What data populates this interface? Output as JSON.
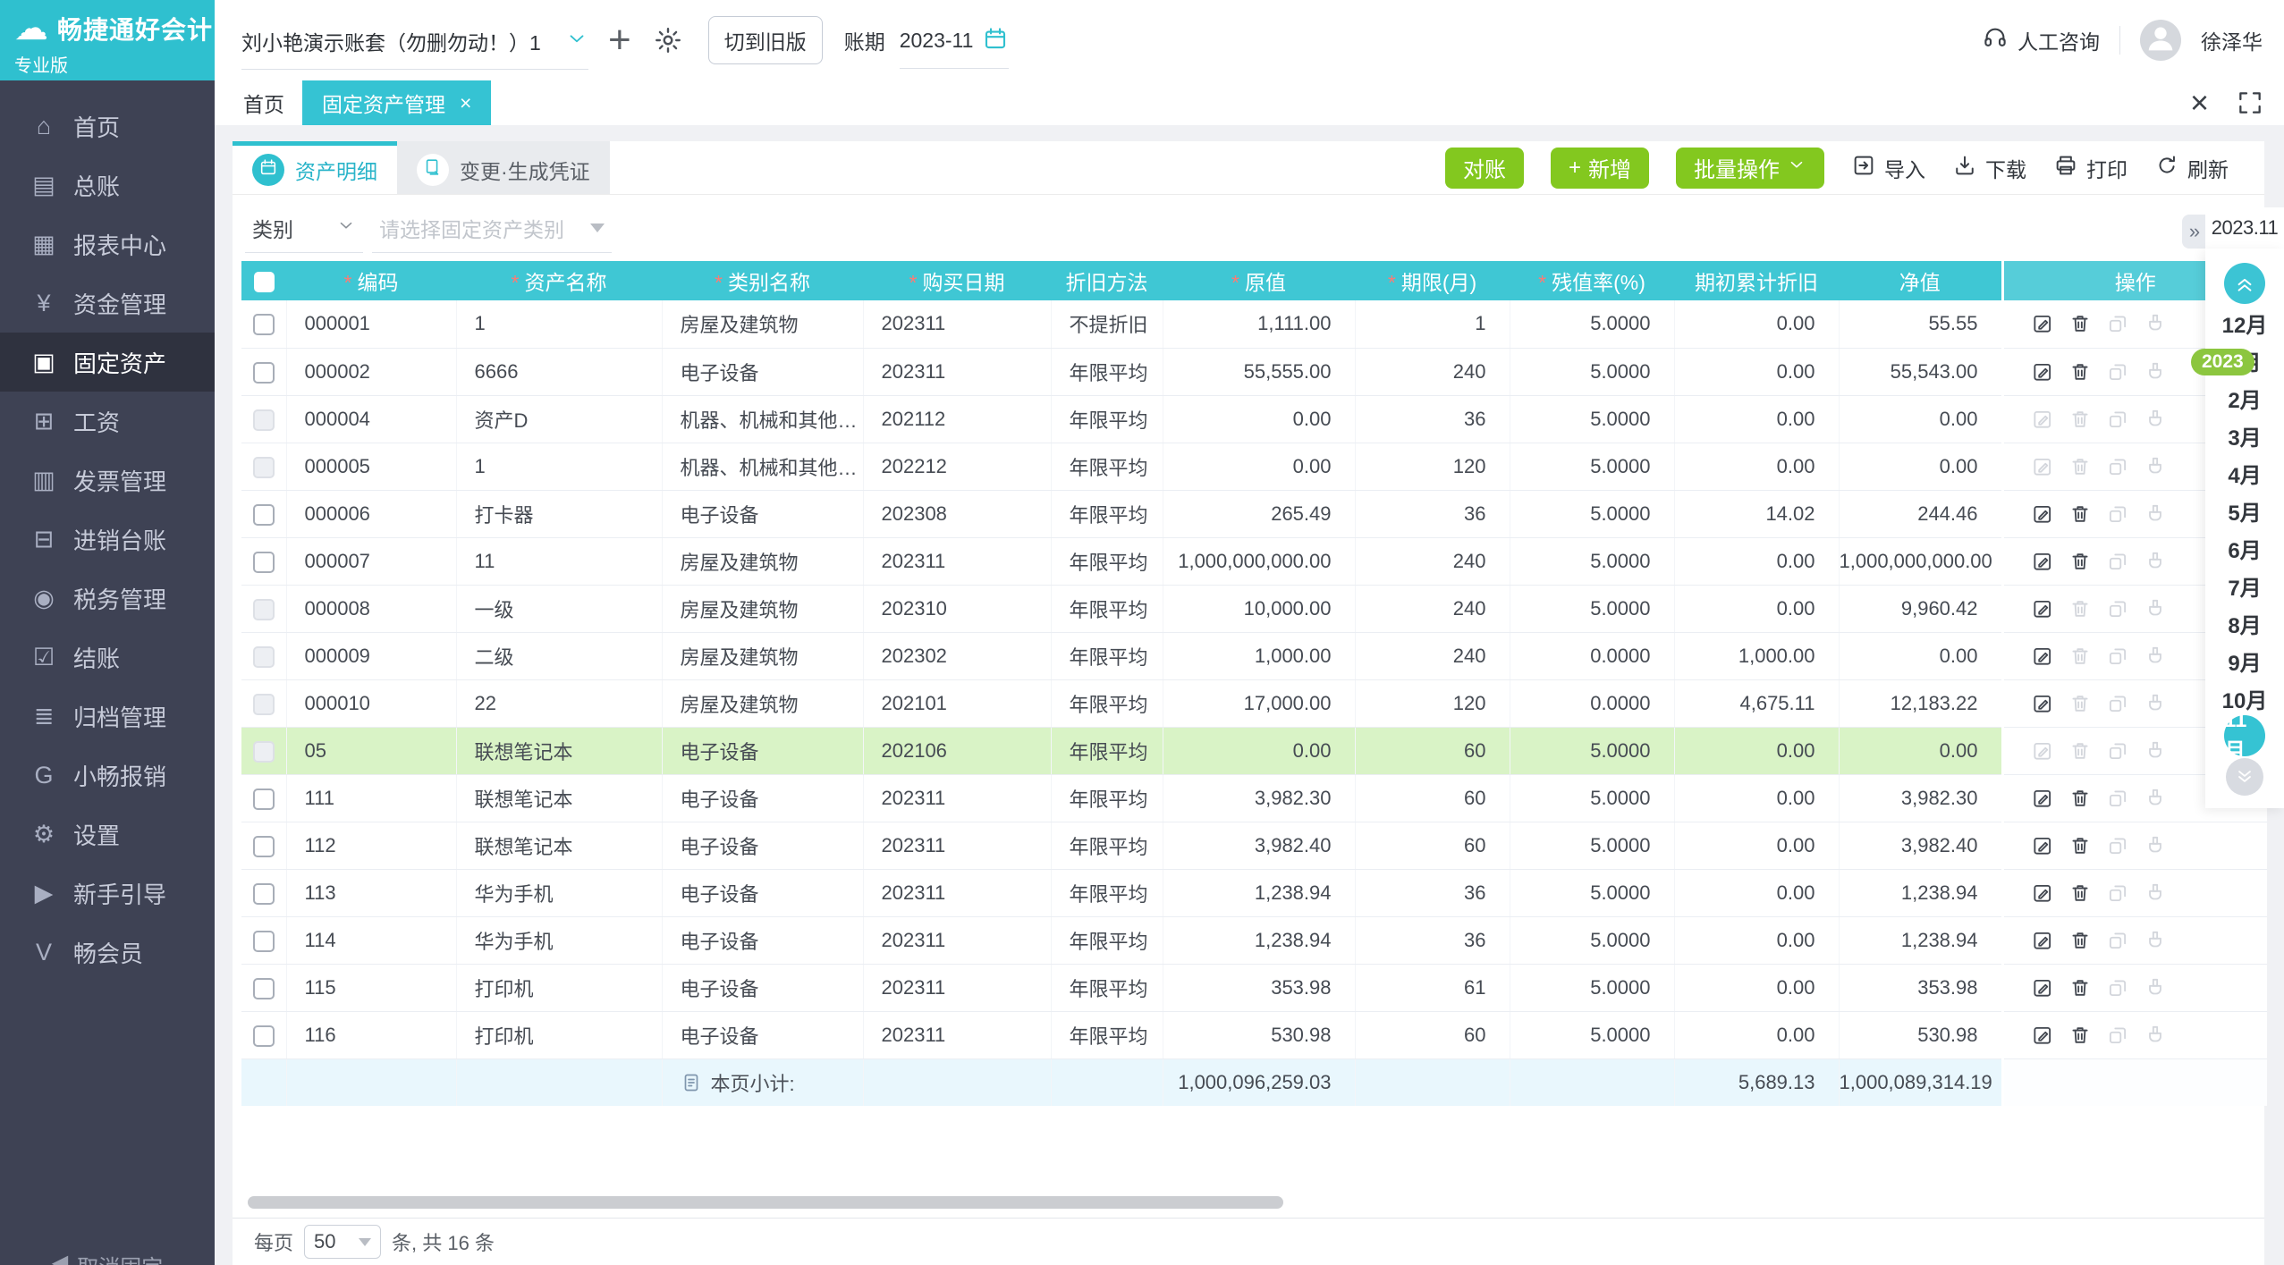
{
  "brand": {
    "title": "畅捷通好会计",
    "edition": "专业版"
  },
  "header": {
    "account": "刘小艳演示账套（勿删勿动！）1",
    "switch_old": "切到旧版",
    "period_label": "账期",
    "period": "2023-11",
    "support": "人工咨询",
    "username": "徐泽华"
  },
  "tabs": [
    {
      "label": "首页",
      "active": false
    },
    {
      "label": "固定资产管理",
      "active": true,
      "close": "×"
    }
  ],
  "subtabs": [
    {
      "label": "资产明细",
      "icon": "calendar",
      "active": true
    },
    {
      "label": "变更·生成凭证",
      "icon": "voucher",
      "active": false
    }
  ],
  "toolbar": {
    "reconcile": "对账",
    "add": "新增",
    "batch": "批量操作",
    "import": "导入",
    "download": "下载",
    "print": "打印",
    "refresh": "刷新"
  },
  "filter": {
    "label": "类别",
    "placeholder": "请选择固定资产类别"
  },
  "sidebar": {
    "items": [
      {
        "label": "首页",
        "icon": "home-icon",
        "glyph": "⌂",
        "active": false
      },
      {
        "label": "总账",
        "icon": "general-ledger-icon",
        "glyph": "▤",
        "active": false
      },
      {
        "label": "报表中心",
        "icon": "report-center-icon",
        "glyph": "▦",
        "active": false
      },
      {
        "label": "资金管理",
        "icon": "funds-icon",
        "glyph": "¥",
        "active": false
      },
      {
        "label": "固定资产",
        "icon": "fixed-assets-icon",
        "glyph": "▣",
        "active": true
      },
      {
        "label": "工资",
        "icon": "salary-icon",
        "glyph": "⊞",
        "active": false
      },
      {
        "label": "发票管理",
        "icon": "invoice-icon",
        "glyph": "▥",
        "active": false
      },
      {
        "label": "进销台账",
        "icon": "purchase-sales-icon",
        "glyph": "⊟",
        "active": false
      },
      {
        "label": "税务管理",
        "icon": "tax-icon",
        "glyph": "◉",
        "active": false
      },
      {
        "label": "结账",
        "icon": "closing-icon",
        "glyph": "☑",
        "active": false
      },
      {
        "label": "归档管理",
        "icon": "archive-icon",
        "glyph": "≣",
        "active": false
      },
      {
        "label": "小畅报销",
        "icon": "reimburse-icon",
        "glyph": "G",
        "active": false
      },
      {
        "label": "设置",
        "icon": "settings-icon",
        "glyph": "⚙",
        "active": false
      },
      {
        "label": "新手引导",
        "icon": "guide-icon",
        "glyph": "▶",
        "active": false
      },
      {
        "label": "畅会员",
        "icon": "member-icon",
        "glyph": "V",
        "active": false
      }
    ],
    "unpin": "取消固定"
  },
  "table": {
    "columns": [
      {
        "key": "code",
        "label": "编码",
        "required": true
      },
      {
        "key": "name",
        "label": "资产名称",
        "required": true
      },
      {
        "key": "category",
        "label": "类别名称",
        "required": true
      },
      {
        "key": "date",
        "label": "购买日期",
        "required": true
      },
      {
        "key": "method",
        "label": "折旧方法",
        "required": false
      },
      {
        "key": "original",
        "label": "原值",
        "required": true,
        "numeric": true
      },
      {
        "key": "months",
        "label": "期限(月)",
        "required": true,
        "numeric": true
      },
      {
        "key": "rate",
        "label": "残值率(%)",
        "required": true,
        "numeric": true
      },
      {
        "key": "init_dep",
        "label": "期初累计折旧",
        "required": false,
        "numeric": true
      },
      {
        "key": "net",
        "label": "净值",
        "required": false,
        "numeric": true
      }
    ],
    "actions_label": "操作",
    "rows": [
      {
        "code": "000001",
        "name": "1",
        "category": "房屋及建筑物",
        "date": "202311",
        "method": "不提折旧",
        "original": "1,111.00",
        "months": "1",
        "rate": "5.0000",
        "init_dep": "0.00",
        "net": "55.55",
        "checkbox": "enabled",
        "actions": "edit-delete",
        "highlight": false
      },
      {
        "code": "000002",
        "name": "6666",
        "category": "电子设备",
        "date": "202311",
        "method": "年限平均",
        "original": "55,555.00",
        "months": "240",
        "rate": "5.0000",
        "init_dep": "0.00",
        "net": "55,543.00",
        "checkbox": "enabled",
        "actions": "edit-delete",
        "highlight": false
      },
      {
        "code": "000004",
        "name": "资产D",
        "category": "机器、机械和其他生...",
        "date": "202112",
        "method": "年限平均",
        "original": "0.00",
        "months": "36",
        "rate": "5.0000",
        "init_dep": "0.00",
        "net": "0.00",
        "checkbox": "disabled",
        "actions": "none",
        "highlight": false
      },
      {
        "code": "000005",
        "name": "1",
        "category": "机器、机械和其他生...",
        "date": "202212",
        "method": "年限平均",
        "original": "0.00",
        "months": "120",
        "rate": "5.0000",
        "init_dep": "0.00",
        "net": "0.00",
        "checkbox": "disabled",
        "actions": "none",
        "highlight": false
      },
      {
        "code": "000006",
        "name": "打卡器",
        "category": "电子设备",
        "date": "202308",
        "method": "年限平均",
        "original": "265.49",
        "months": "36",
        "rate": "5.0000",
        "init_dep": "14.02",
        "net": "244.46",
        "checkbox": "enabled",
        "actions": "edit-delete",
        "highlight": false
      },
      {
        "code": "000007",
        "name": "11",
        "category": "房屋及建筑物",
        "date": "202311",
        "method": "年限平均",
        "original": "1,000,000,000.00",
        "months": "240",
        "rate": "5.0000",
        "init_dep": "0.00",
        "net": "1,000,000,000.00",
        "checkbox": "enabled",
        "actions": "edit-delete",
        "highlight": false
      },
      {
        "code": "000008",
        "name": "一级",
        "category": "房屋及建筑物",
        "date": "202310",
        "method": "年限平均",
        "original": "10,000.00",
        "months": "240",
        "rate": "5.0000",
        "init_dep": "0.00",
        "net": "9,960.42",
        "checkbox": "disabled",
        "actions": "edit-only",
        "highlight": false
      },
      {
        "code": "000009",
        "name": "二级",
        "category": "房屋及建筑物",
        "date": "202302",
        "method": "年限平均",
        "original": "1,000.00",
        "months": "240",
        "rate": "0.0000",
        "init_dep": "1,000.00",
        "net": "0.00",
        "checkbox": "disabled",
        "actions": "edit-only",
        "highlight": false
      },
      {
        "code": "000010",
        "name": "22",
        "category": "房屋及建筑物",
        "date": "202101",
        "method": "年限平均",
        "original": "17,000.00",
        "months": "120",
        "rate": "0.0000",
        "init_dep": "4,675.11",
        "net": "12,183.22",
        "checkbox": "disabled",
        "actions": "edit-only",
        "highlight": false
      },
      {
        "code": "05",
        "name": "联想笔记本",
        "category": "电子设备",
        "date": "202106",
        "method": "年限平均",
        "original": "0.00",
        "months": "60",
        "rate": "5.0000",
        "init_dep": "0.00",
        "net": "0.00",
        "checkbox": "disabled",
        "actions": "none",
        "highlight": true
      },
      {
        "code": "111",
        "name": "联想笔记本",
        "category": "电子设备",
        "date": "202311",
        "method": "年限平均",
        "original": "3,982.30",
        "months": "60",
        "rate": "5.0000",
        "init_dep": "0.00",
        "net": "3,982.30",
        "checkbox": "enabled",
        "actions": "edit-delete",
        "highlight": false
      },
      {
        "code": "112",
        "name": "联想笔记本",
        "category": "电子设备",
        "date": "202311",
        "method": "年限平均",
        "original": "3,982.40",
        "months": "60",
        "rate": "5.0000",
        "init_dep": "0.00",
        "net": "3,982.40",
        "checkbox": "enabled",
        "actions": "edit-delete",
        "highlight": false
      },
      {
        "code": "113",
        "name": "华为手机",
        "category": "电子设备",
        "date": "202311",
        "method": "年限平均",
        "original": "1,238.94",
        "months": "36",
        "rate": "5.0000",
        "init_dep": "0.00",
        "net": "1,238.94",
        "checkbox": "enabled",
        "actions": "edit-delete",
        "highlight": false
      },
      {
        "code": "114",
        "name": "华为手机",
        "category": "电子设备",
        "date": "202311",
        "method": "年限平均",
        "original": "1,238.94",
        "months": "36",
        "rate": "5.0000",
        "init_dep": "0.00",
        "net": "1,238.94",
        "checkbox": "enabled",
        "actions": "edit-delete",
        "highlight": false
      },
      {
        "code": "115",
        "name": "打印机",
        "category": "电子设备",
        "date": "202311",
        "method": "年限平均",
        "original": "353.98",
        "months": "61",
        "rate": "5.0000",
        "init_dep": "0.00",
        "net": "353.98",
        "checkbox": "enabled",
        "actions": "edit-delete",
        "highlight": false
      },
      {
        "code": "116",
        "name": "打印机",
        "category": "电子设备",
        "date": "202311",
        "method": "年限平均",
        "original": "530.98",
        "months": "60",
        "rate": "5.0000",
        "init_dep": "0.00",
        "net": "530.98",
        "checkbox": "enabled",
        "actions": "edit-delete",
        "highlight": false
      }
    ],
    "summary": {
      "label": "本页小计:",
      "original": "1,000,096,259.03",
      "init_dep": "5,689.13",
      "net": "1,000,089,314.19"
    }
  },
  "pagination": {
    "per_page_label": "每页",
    "per_page_value": "50",
    "suffix": "条, 共 16 条"
  },
  "calendar": {
    "tab": "2023.11",
    "year_badge": "2023",
    "months": [
      "12月",
      "1月",
      "2月",
      "3月",
      "4月",
      "5月",
      "6月",
      "7月",
      "8月",
      "9月",
      "10月",
      "11月"
    ],
    "selected_month": "11月"
  },
  "colors": {
    "brand_teal": "#2fc0cf",
    "header_teal": "#3fc7d4",
    "button_green": "#83c81f",
    "highlight_row_green": "#d9f3c6",
    "summary_row_blue": "#e9f7fd",
    "sidebar_bg": "#3e4254"
  }
}
